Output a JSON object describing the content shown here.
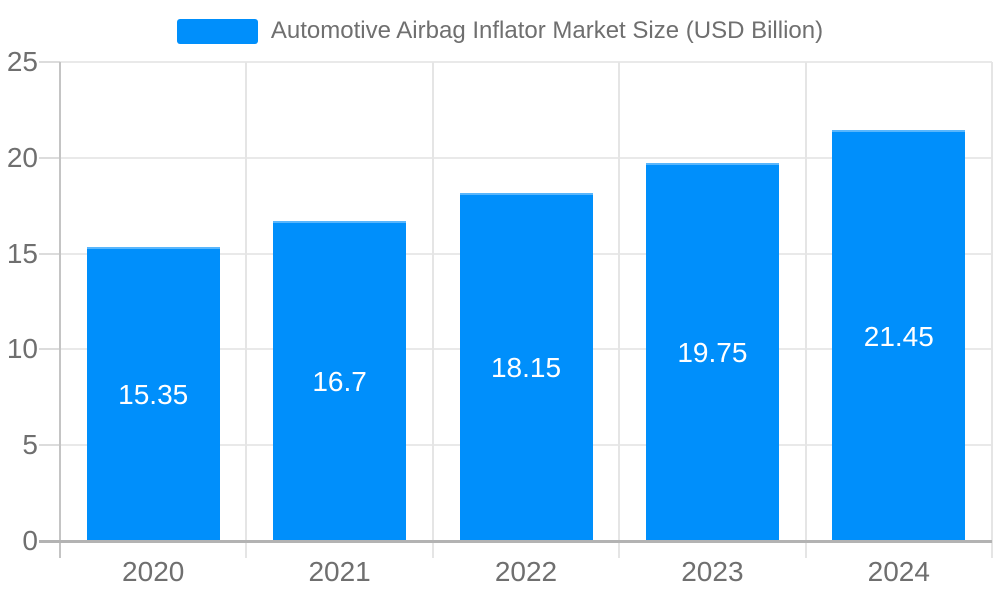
{
  "chart_data": {
    "type": "bar",
    "title": "Automotive Airbag Inflator Market Size (USD Billion)",
    "categories": [
      "2020",
      "2021",
      "2022",
      "2023",
      "2024"
    ],
    "values": [
      15.35,
      16.7,
      18.15,
      19.75,
      21.45
    ],
    "value_labels": [
      "15.35",
      "16.7",
      "18.15",
      "19.75",
      "21.45"
    ],
    "xlabel": "",
    "ylabel": "",
    "ylim": [
      0,
      25
    ],
    "yticks": [
      0,
      5,
      10,
      15,
      20,
      25
    ],
    "grid": true,
    "legend_position": "top",
    "series_color": "#008FFB",
    "value_label_color": "#ffffff",
    "axis_label_color": "#6f6f6f",
    "legend_label_color": "#6f6f6f",
    "gridline_color": "#e9e9e9",
    "baseline_color": "#b3b3b3"
  }
}
